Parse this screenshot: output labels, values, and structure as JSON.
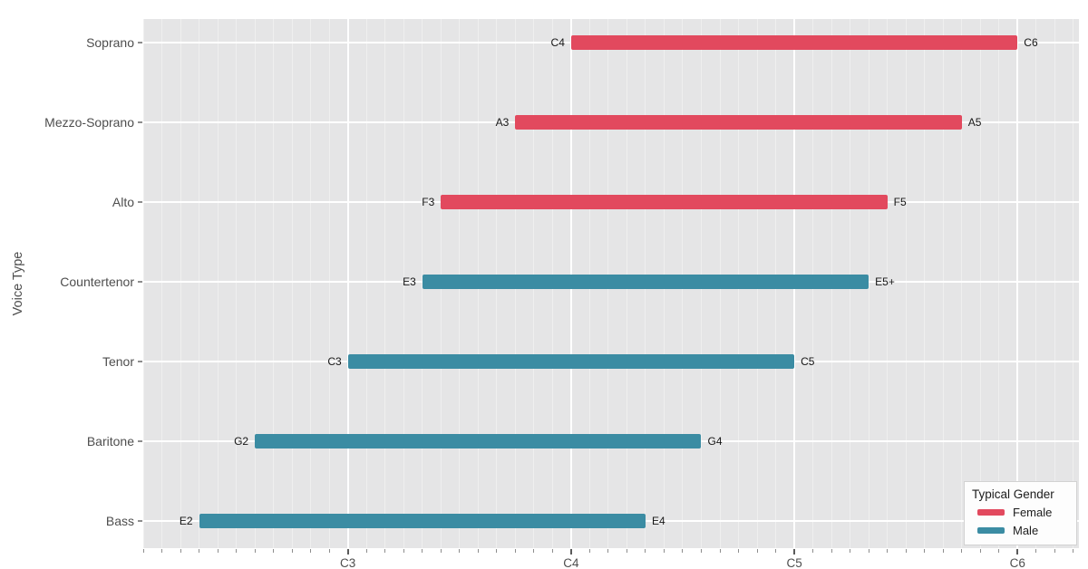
{
  "chart_data": {
    "type": "bar",
    "variant": "horizontal-range",
    "title": "",
    "xlabel": "",
    "ylabel": "Voice Type",
    "grid": "on",
    "legend": {
      "title": "Typical Gender",
      "position": "bottom-right",
      "entries": [
        {
          "label": "Female",
          "color": "#e2495e"
        },
        {
          "label": "Male",
          "color": "#3b8ca3"
        }
      ]
    },
    "x_axis": {
      "note_min": 37,
      "note_max": 87.3,
      "minor_tick_step_semitones": 1,
      "major_ticks": [
        {
          "label": "C3",
          "note": 48
        },
        {
          "label": "C4",
          "note": 60
        },
        {
          "label": "C5",
          "note": 72
        },
        {
          "label": "C6",
          "note": 84
        }
      ]
    },
    "rows": [
      {
        "voice": "Soprano",
        "gender": "Female",
        "low_label": "C4",
        "low_note": 60,
        "high_label": "C6",
        "high_note": 84
      },
      {
        "voice": "Mezzo-Soprano",
        "gender": "Female",
        "low_label": "A3",
        "low_note": 57,
        "high_label": "A5",
        "high_note": 81
      },
      {
        "voice": "Alto",
        "gender": "Female",
        "low_label": "F3",
        "low_note": 53,
        "high_label": "F5",
        "high_note": 77
      },
      {
        "voice": "Countertenor",
        "gender": "Male",
        "low_label": "E3",
        "low_note": 52,
        "high_label": "E5+",
        "high_note": 76
      },
      {
        "voice": "Tenor",
        "gender": "Male",
        "low_label": "C3",
        "low_note": 48,
        "high_label": "C5",
        "high_note": 72
      },
      {
        "voice": "Baritone",
        "gender": "Male",
        "low_label": "G2",
        "low_note": 43,
        "high_label": "G4",
        "high_note": 67
      },
      {
        "voice": "Bass",
        "gender": "Male",
        "low_label": "E2",
        "low_note": 40,
        "high_label": "E4",
        "high_note": 64
      }
    ],
    "colors": {
      "female": "#e2495e",
      "male": "#3b8ca3",
      "panel_background": "#e5e5e6",
      "gridline": "#ffffff",
      "axis_text": "#4e4e4e",
      "bar_label_text": "#161616"
    }
  }
}
